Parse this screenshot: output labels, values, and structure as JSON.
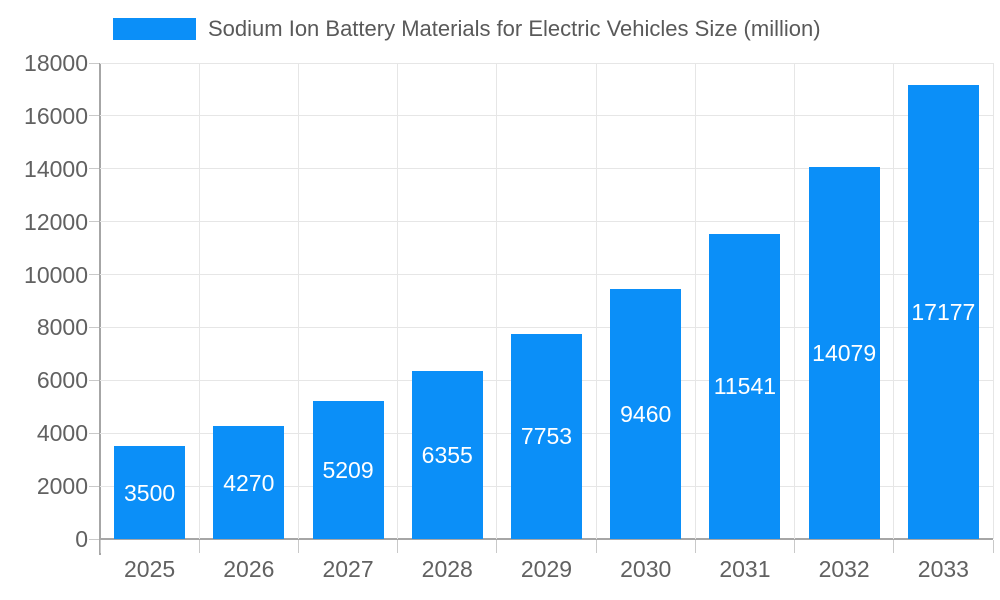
{
  "legend": {
    "label": "Sodium Ion Battery Materials for Electric Vehicles Size (million)",
    "swatch_color": "#0b8ff8"
  },
  "chart_data": {
    "type": "bar",
    "title": "Sodium Ion Battery Materials for Electric Vehicles Size (million)",
    "categories": [
      "2025",
      "2026",
      "2027",
      "2028",
      "2029",
      "2030",
      "2031",
      "2032",
      "2033"
    ],
    "series": [
      {
        "name": "Sodium Ion Battery Materials for Electric Vehicles Size (million)",
        "color": "#0b8ff8",
        "values": [
          3500,
          4270,
          5209,
          6355,
          7753,
          9460,
          11541,
          14079,
          17177
        ]
      }
    ],
    "xlabel": "",
    "ylabel": "",
    "ylim": [
      0,
      18000
    ],
    "ytick_step": 2000,
    "yticks": [
      0,
      2000,
      4000,
      6000,
      8000,
      10000,
      12000,
      14000,
      16000,
      18000
    ],
    "grid": true,
    "legend_position": "top-left",
    "value_labels": {
      "visible": true,
      "position": "inside-center",
      "color": "#ffffff"
    },
    "style": {
      "background": "#ffffff",
      "grid_color": "#e6e6e6",
      "axis_line_color": "#a6a6a6",
      "tick_color": "#c9c9c9",
      "axis_text_color": "#616161",
      "title_text_color": "#595959"
    }
  }
}
